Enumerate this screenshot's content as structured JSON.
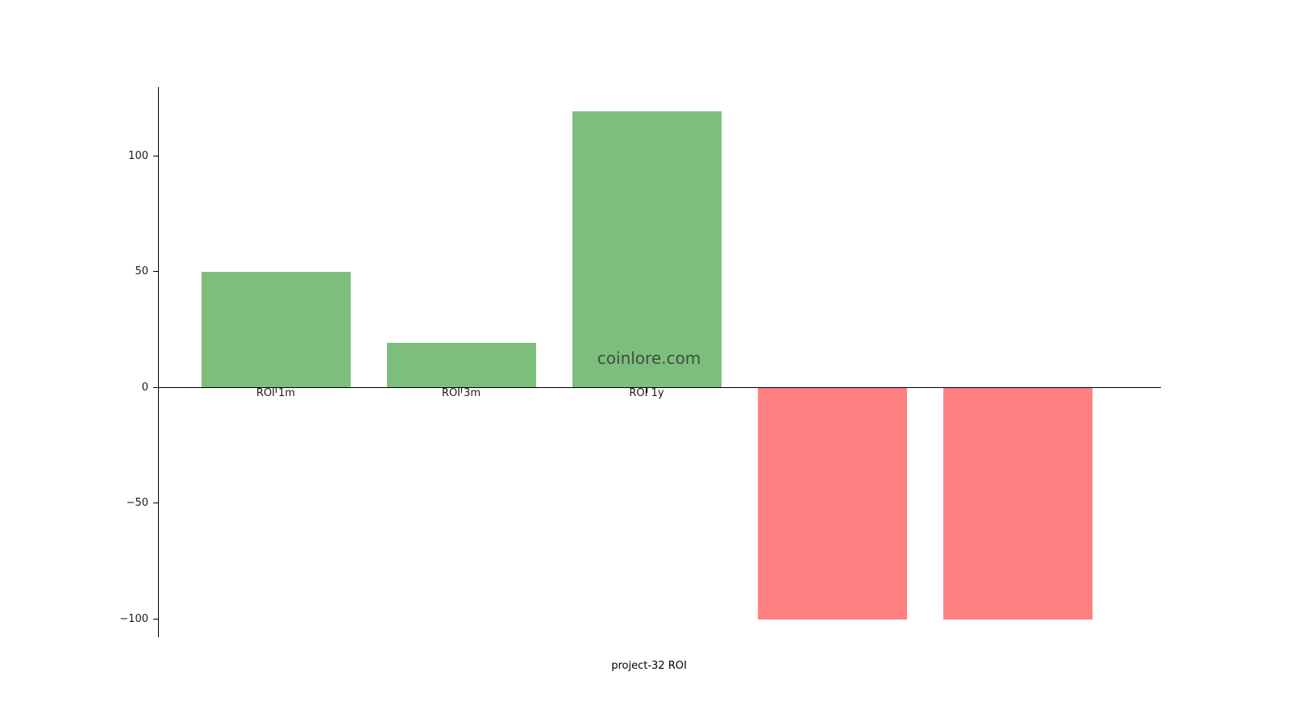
{
  "chart_data": {
    "type": "bar",
    "title": "project-32 ROI",
    "categories": [
      "ROI 1m",
      "ROI 3m",
      "ROI 1y",
      "",
      ""
    ],
    "values": [
      50,
      19,
      119,
      -100,
      -100
    ],
    "yticks": [
      100,
      50,
      0,
      -50,
      -100
    ],
    "ylim": [
      -110,
      130
    ],
    "xlabel": "",
    "ylabel": "",
    "grid": false,
    "legend": "none",
    "positive_color": "#7dbe7d",
    "negative_color": "#ff8080",
    "axis_color": "#000000"
  },
  "watermark": {
    "text": "coinlore.com"
  }
}
